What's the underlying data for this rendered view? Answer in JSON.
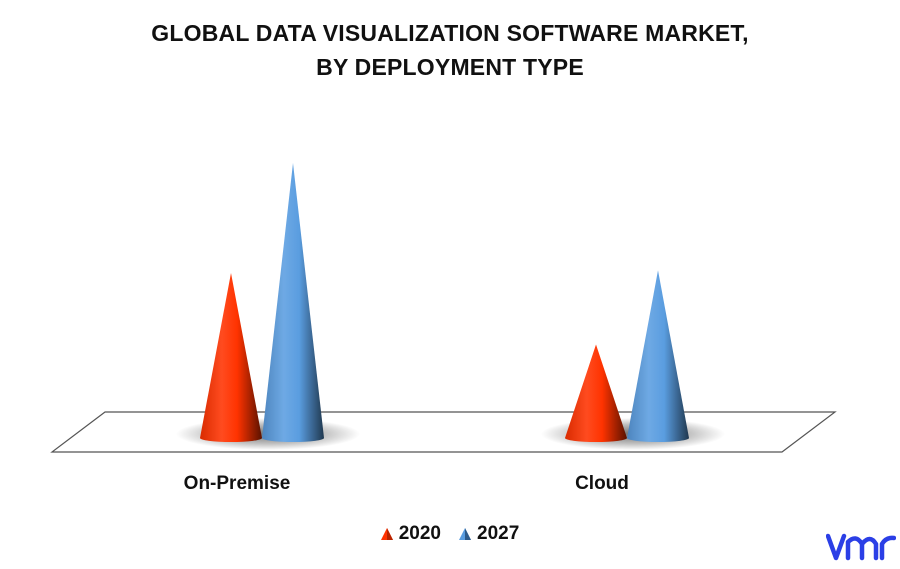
{
  "chart_data": {
    "type": "bar",
    "title": "GLOBAL DATA VISUALIZATION SOFTWARE MARKET,",
    "subtitle": "BY DEPLOYMENT TYPE",
    "categories": [
      "On-Premise",
      "Cloud"
    ],
    "series": [
      {
        "name": "2020",
        "values": [
          60,
          34
        ],
        "color": "#ff3300"
      },
      {
        "name": "2027",
        "values": [
          100,
          61
        ],
        "color": "#5a9de0"
      }
    ],
    "ylim": [
      0,
      100
    ],
    "grid": false,
    "legend": "bottom-center",
    "shape": "cone-3d"
  },
  "logo": {
    "name": "vmr-logo",
    "color": "#2b3fe6"
  }
}
